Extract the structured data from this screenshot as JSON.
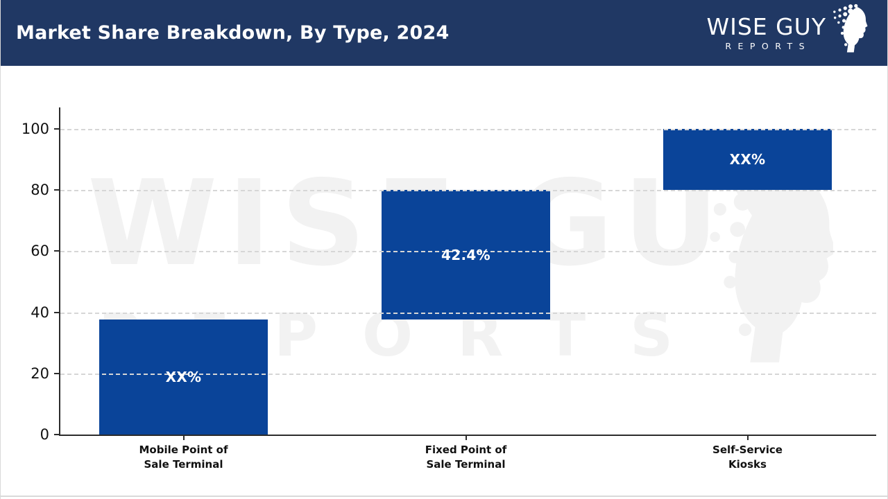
{
  "header": {
    "title": "Market Share Breakdown, By Type, 2024",
    "logo": {
      "line1": "WISE GUY",
      "line2": "REPORTS"
    }
  },
  "watermark": {
    "line1": "WISE GUY",
    "line2": "REPORTS"
  },
  "colors": {
    "header_bg": "#203864",
    "bar": "#0A4499",
    "bar_label": "#FFFFFF",
    "gridline": "#D6D6D6",
    "axis": "#2B2B2B",
    "tick_text": "#111111",
    "watermark": "#F2F2F2",
    "page_border": "#D9D9D9"
  },
  "chart_data": {
    "type": "bar",
    "variant": "waterfall",
    "title": "Market Share Breakdown, By Type, 2024",
    "categories": [
      "Mobile Point of Sale Terminal",
      "Fixed Point of Sale Terminal",
      "Self-Service Kiosks"
    ],
    "category_lines": [
      [
        "Mobile Point of",
        "Sale Terminal"
      ],
      [
        "Fixed Point of",
        "Sale Terminal"
      ],
      [
        "Self-Service",
        "Kiosks"
      ]
    ],
    "segments": [
      {
        "category": "Mobile Point of Sale Terminal",
        "start": 0,
        "end": 37.6,
        "label": "XX%",
        "value_masked": true
      },
      {
        "category": "Fixed Point of Sale Terminal",
        "start": 37.6,
        "end": 80,
        "label": "42.4%",
        "value_masked": false
      },
      {
        "category": "Self-Service Kiosks",
        "start": 80,
        "end": 100,
        "label": "XX%",
        "value_masked": true
      }
    ],
    "xlabel": "",
    "ylabel": "",
    "yticks": [
      0,
      20,
      40,
      60,
      80,
      100
    ],
    "ylim": [
      0,
      107
    ],
    "grid": "horizontal-dashed",
    "gridlines_above_bars": true,
    "legend": "none"
  }
}
